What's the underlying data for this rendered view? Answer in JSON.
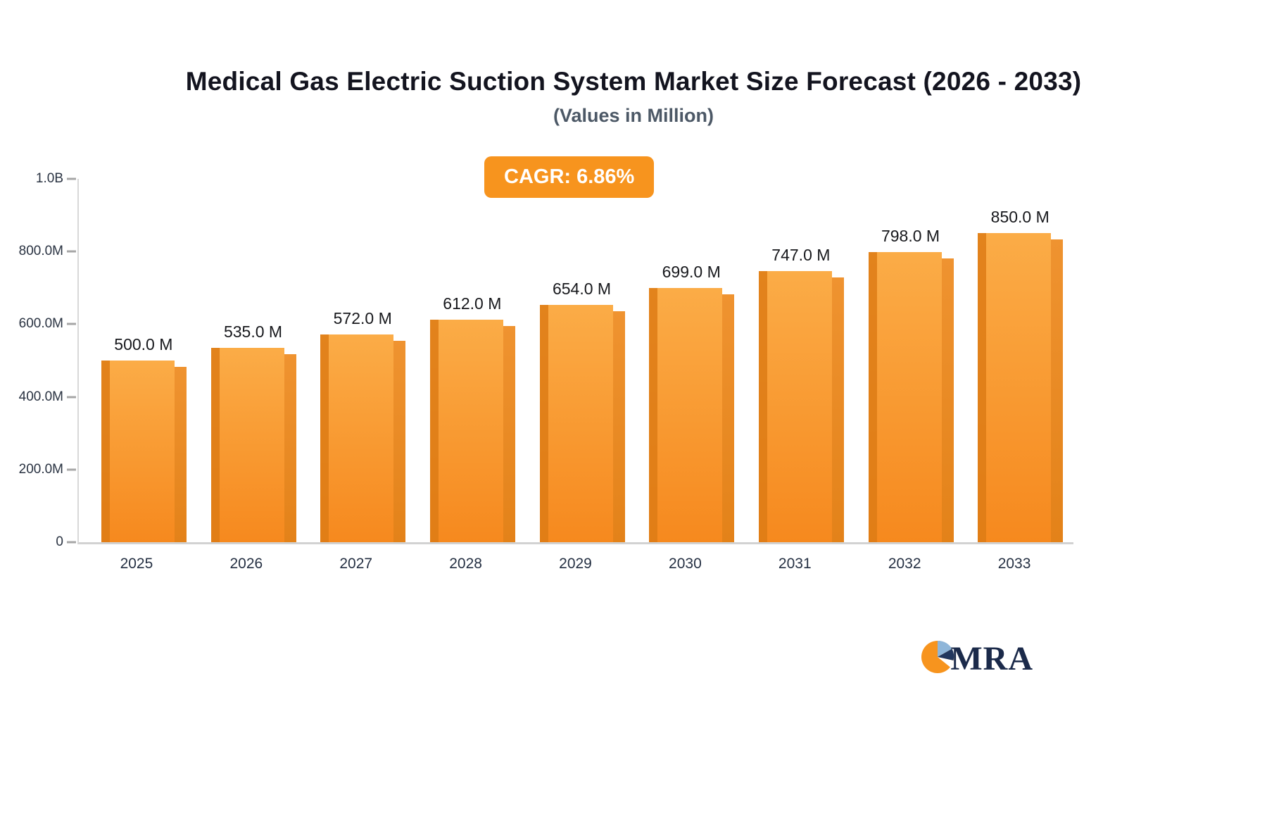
{
  "chart_data": {
    "type": "bar",
    "title": "Medical Gas Electric Suction System Market Size Forecast (2026 - 2033)",
    "subtitle": "(Values in Million)",
    "cagr_badge": "CAGR: 6.86%",
    "categories": [
      "2025",
      "2026",
      "2027",
      "2028",
      "2029",
      "2030",
      "2031",
      "2032",
      "2033"
    ],
    "values": [
      500,
      535,
      572,
      612,
      654,
      699,
      747,
      798,
      850
    ],
    "value_labels": [
      "500.0 M",
      "535.0 M",
      "572.0 M",
      "612.0 M",
      "654.0 M",
      "699.0 M",
      "747.0 M",
      "798.0 M",
      "850.0 M"
    ],
    "xlabel": "",
    "ylabel": "",
    "ylim": [
      0,
      1000
    ],
    "y_ticks": [
      {
        "label": "0",
        "value": 0
      },
      {
        "label": "200.0M",
        "value": 200
      },
      {
        "label": "400.0M",
        "value": 400
      },
      {
        "label": "600.0M",
        "value": 600
      },
      {
        "label": "800.0M",
        "value": 800
      },
      {
        "label": "1.0B",
        "value": 1000
      }
    ],
    "grid": false,
    "legend": false,
    "colors": {
      "bar_top": "#fbac47",
      "bar_bottom": "#f6891e",
      "bar_side": "#e38219",
      "bar_edge": "#dd7b15",
      "badge_background": "#f7941e",
      "badge_text": "#ffffff",
      "axis_line": "#d8d8d8",
      "tick_text": "#2a3342",
      "value_text": "#17181c"
    }
  },
  "logo": {
    "text": "MRA"
  }
}
